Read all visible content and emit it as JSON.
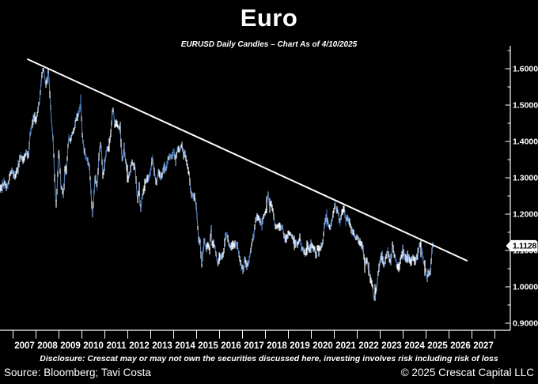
{
  "header": {
    "title": "Euro",
    "subtitle": "EURUSD Daily Candles – Chart As of 4/10/2025"
  },
  "footer": {
    "disclosure": "Disclosure: Crescat may or may not own the securities discussed here, investing involves risk including risk of loss",
    "source": "Source: Bloomberg; Tavi Costa",
    "copyright": "© 2025 Crescat Capital LLC"
  },
  "chart_data": {
    "type": "candlestick",
    "instrument": "EURUSD",
    "title": "Euro",
    "subtitle": "EURUSD Daily Candles – Chart As of 4/10/2025",
    "last_price": "1.1128",
    "grid": false,
    "legend": false,
    "x_axis": {
      "tick_years": [
        2007,
        2008,
        2009,
        2010,
        2011,
        2012,
        2013,
        2014,
        2015,
        2016,
        2017,
        2018,
        2019,
        2020,
        2021,
        2022,
        2023,
        2024,
        2025,
        2026,
        2027
      ]
    },
    "y_axis": {
      "major_ticks": [
        1.6,
        1.5,
        1.4,
        1.3,
        1.2,
        1.1,
        1.0,
        0.9
      ],
      "major_tick_labels": [
        "1.6000",
        "1.5000",
        "1.4000",
        "1.3000",
        "1.2000",
        "1.1000",
        "1.0000",
        "0.9000"
      ],
      "minor_ticks": [
        1.65,
        1.55,
        1.45,
        1.35,
        1.25,
        1.15,
        1.05,
        0.95
      ],
      "range": [
        0.88,
        1.655
      ]
    },
    "trendline": {
      "start": {
        "year": 2007.64,
        "price": 1.626
      },
      "end": {
        "year": 2026.78,
        "price": 1.072
      }
    },
    "colors": {
      "background": "#000000",
      "text": "#ffffff",
      "axis": "#ffffff",
      "trendline": "#ffffff",
      "badge_bg": "#ffffff",
      "badge_text": "#000000",
      "candles": [
        "#ffffff",
        "#d9e8fa",
        "#8fb8e8",
        "#4a7fd0",
        "#2a5cb0"
      ],
      "connector": "#6f9fd8"
    },
    "series_monthly": [
      [
        2006.42,
        1.269
      ],
      [
        2006.54,
        1.2764
      ],
      [
        2006.63,
        1.2851
      ],
      [
        2006.71,
        1.266
      ],
      [
        2006.79,
        1.2766
      ],
      [
        2006.88,
        1.3092
      ],
      [
        2006.96,
        1.3197
      ],
      [
        2007.08,
        1.2999
      ],
      [
        2007.17,
        1.3231
      ],
      [
        2007.25,
        1.3354
      ],
      [
        2007.33,
        1.3654
      ],
      [
        2007.42,
        1.3453
      ],
      [
        2007.5,
        1.3542
      ],
      [
        2007.58,
        1.3707
      ],
      [
        2007.67,
        1.3629
      ],
      [
        2007.75,
        1.4271
      ],
      [
        2007.83,
        1.4485
      ],
      [
        2007.92,
        1.4757
      ],
      [
        2008.0,
        1.4592
      ],
      [
        2008.08,
        1.487
      ],
      [
        2008.17,
        1.5187
      ],
      [
        2008.25,
        1.5805
      ],
      [
        2008.33,
        1.597
      ],
      [
        2008.42,
        1.5554
      ],
      [
        2008.5,
        1.5755
      ],
      [
        2008.54,
        1.6038
      ],
      [
        2008.58,
        1.5601
      ],
      [
        2008.67,
        1.4672
      ],
      [
        2008.75,
        1.4092
      ],
      [
        2008.83,
        1.2726
      ],
      [
        2008.88,
        1.233
      ],
      [
        2008.92,
        1.2694
      ],
      [
        2009.0,
        1.3971
      ],
      [
        2009.08,
        1.281
      ],
      [
        2009.17,
        1.2662
      ],
      [
        2009.21,
        1.2457
      ],
      [
        2009.25,
        1.3254
      ],
      [
        2009.33,
        1.3226
      ],
      [
        2009.42,
        1.4155
      ],
      [
        2009.5,
        1.4034
      ],
      [
        2009.58,
        1.4255
      ],
      [
        2009.67,
        1.4332
      ],
      [
        2009.75,
        1.4643
      ],
      [
        2009.83,
        1.4718
      ],
      [
        2009.92,
        1.5005
      ],
      [
        2009.96,
        1.512
      ],
      [
        2010.0,
        1.433
      ],
      [
        2010.08,
        1.3862
      ],
      [
        2010.17,
        1.3618
      ],
      [
        2010.25,
        1.351
      ],
      [
        2010.33,
        1.3302
      ],
      [
        2010.42,
        1.2307
      ],
      [
        2010.46,
        1.1877
      ],
      [
        2010.5,
        1.2238
      ],
      [
        2010.58,
        1.3049
      ],
      [
        2010.67,
        1.268
      ],
      [
        2010.75,
        1.3634
      ],
      [
        2010.83,
        1.3947
      ],
      [
        2010.92,
        1.2983
      ],
      [
        2011.0,
        1.3384
      ],
      [
        2011.08,
        1.3692
      ],
      [
        2011.17,
        1.3806
      ],
      [
        2011.25,
        1.4158
      ],
      [
        2011.33,
        1.4807
      ],
      [
        2011.38,
        1.494
      ],
      [
        2011.42,
        1.4398
      ],
      [
        2011.5,
        1.4502
      ],
      [
        2011.58,
        1.4398
      ],
      [
        2011.67,
        1.4388
      ],
      [
        2011.75,
        1.3387
      ],
      [
        2011.83,
        1.3856
      ],
      [
        2011.92,
        1.3446
      ],
      [
        2012.0,
        1.2961
      ],
      [
        2012.08,
        1.3081
      ],
      [
        2012.17,
        1.3444
      ],
      [
        2012.25,
        1.3343
      ],
      [
        2012.33,
        1.3239
      ],
      [
        2012.42,
        1.2358
      ],
      [
        2012.5,
        1.2667
      ],
      [
        2012.56,
        1.2042
      ],
      [
        2012.58,
        1.2304
      ],
      [
        2012.67,
        1.2579
      ],
      [
        2012.75,
        1.286
      ],
      [
        2012.83,
        1.2961
      ],
      [
        2012.92,
        1.2985
      ],
      [
        2013.0,
        1.3193
      ],
      [
        2013.08,
        1.358
      ],
      [
        2013.17,
        1.3057
      ],
      [
        2013.25,
        1.2819
      ],
      [
        2013.33,
        1.3168
      ],
      [
        2013.42,
        1.2995
      ],
      [
        2013.5,
        1.301
      ],
      [
        2013.58,
        1.3275
      ],
      [
        2013.67,
        1.3221
      ],
      [
        2013.75,
        1.3527
      ],
      [
        2013.83,
        1.3583
      ],
      [
        2013.92,
        1.3591
      ],
      [
        2014.0,
        1.3743
      ],
      [
        2014.08,
        1.3486
      ],
      [
        2014.17,
        1.3802
      ],
      [
        2014.25,
        1.3769
      ],
      [
        2014.33,
        1.3868
      ],
      [
        2014.37,
        1.3934
      ],
      [
        2014.42,
        1.3635
      ],
      [
        2014.5,
        1.3692
      ],
      [
        2014.58,
        1.339
      ],
      [
        2014.67,
        1.3133
      ],
      [
        2014.75,
        1.2632
      ],
      [
        2014.83,
        1.2524
      ],
      [
        2014.92,
        1.2453
      ],
      [
        2015.0,
        1.2098
      ],
      [
        2015.08,
        1.1289
      ],
      [
        2015.17,
        1.1197
      ],
      [
        2015.21,
        1.0458
      ],
      [
        2015.25,
        1.0731
      ],
      [
        2015.33,
        1.1224
      ],
      [
        2015.42,
        1.0986
      ],
      [
        2015.5,
        1.1147
      ],
      [
        2015.58,
        1.0984
      ],
      [
        2015.63,
        1.17
      ],
      [
        2015.67,
        1.1211
      ],
      [
        2015.75,
        1.1177
      ],
      [
        2015.83,
        1.1006
      ],
      [
        2015.92,
        1.0565
      ],
      [
        2016.0,
        1.0862
      ],
      [
        2016.08,
        1.0832
      ],
      [
        2016.17,
        1.0873
      ],
      [
        2016.25,
        1.138
      ],
      [
        2016.33,
        1.1451
      ],
      [
        2016.42,
        1.1132
      ],
      [
        2016.5,
        1.1102
      ],
      [
        2016.58,
        1.1176
      ],
      [
        2016.67,
        1.1159
      ],
      [
        2016.75,
        1.1238
      ],
      [
        2016.83,
        1.0981
      ],
      [
        2016.92,
        1.0588
      ],
      [
        2017.0,
        1.0517
      ],
      [
        2017.04,
        1.0341
      ],
      [
        2017.08,
        1.0798
      ],
      [
        2017.17,
        1.0576
      ],
      [
        2017.25,
        1.0652
      ],
      [
        2017.33,
        1.0895
      ],
      [
        2017.42,
        1.1244
      ],
      [
        2017.5,
        1.1426
      ],
      [
        2017.58,
        1.1842
      ],
      [
        2017.67,
        1.191
      ],
      [
        2017.75,
        1.1814
      ],
      [
        2017.83,
        1.1646
      ],
      [
        2017.92,
        1.1904
      ],
      [
        2018.0,
        1.2005
      ],
      [
        2018.08,
        1.2415
      ],
      [
        2018.13,
        1.2555
      ],
      [
        2018.17,
        1.2193
      ],
      [
        2018.25,
        1.2324
      ],
      [
        2018.33,
        1.2078
      ],
      [
        2018.42,
        1.1693
      ],
      [
        2018.5,
        1.1684
      ],
      [
        2018.58,
        1.1693
      ],
      [
        2018.67,
        1.1601
      ],
      [
        2018.75,
        1.1604
      ],
      [
        2018.83,
        1.1312
      ],
      [
        2018.92,
        1.1317
      ],
      [
        2019.0,
        1.1467
      ],
      [
        2019.08,
        1.1448
      ],
      [
        2019.17,
        1.1371
      ],
      [
        2019.25,
        1.1218
      ],
      [
        2019.33,
        1.1215
      ],
      [
        2019.42,
        1.1168
      ],
      [
        2019.5,
        1.1373
      ],
      [
        2019.58,
        1.1078
      ],
      [
        2019.67,
        1.0989
      ],
      [
        2019.75,
        1.0899
      ],
      [
        2019.83,
        1.1152
      ],
      [
        2019.92,
        1.1018
      ],
      [
        2020.0,
        1.1213
      ],
      [
        2020.08,
        1.1093
      ],
      [
        2020.17,
        1.1026
      ],
      [
        2020.21,
        1.0636
      ],
      [
        2020.25,
        1.1031
      ],
      [
        2020.33,
        1.0955
      ],
      [
        2020.42,
        1.1101
      ],
      [
        2020.5,
        1.1234
      ],
      [
        2020.58,
        1.1778
      ],
      [
        2020.67,
        1.1935
      ],
      [
        2020.75,
        1.1721
      ],
      [
        2020.83,
        1.1647
      ],
      [
        2020.92,
        1.1927
      ],
      [
        2021.0,
        1.2216
      ],
      [
        2021.04,
        1.2349
      ],
      [
        2021.08,
        1.2136
      ],
      [
        2021.17,
        1.2094
      ],
      [
        2021.25,
        1.173
      ],
      [
        2021.33,
        1.202
      ],
      [
        2021.42,
        1.2193
      ],
      [
        2021.5,
        1.1858
      ],
      [
        2021.58,
        1.1871
      ],
      [
        2021.67,
        1.1808
      ],
      [
        2021.75,
        1.158
      ],
      [
        2021.83,
        1.1558
      ],
      [
        2021.92,
        1.1339
      ],
      [
        2022.0,
        1.137
      ],
      [
        2022.08,
        1.1235
      ],
      [
        2022.17,
        1.1218
      ],
      [
        2022.25,
        1.1067
      ],
      [
        2022.33,
        1.0545
      ],
      [
        2022.42,
        1.0735
      ],
      [
        2022.5,
        1.0484
      ],
      [
        2022.58,
        1.022
      ],
      [
        2022.67,
        1.0054
      ],
      [
        2022.73,
        0.9536
      ],
      [
        2022.75,
        0.9802
      ],
      [
        2022.83,
        0.9881
      ],
      [
        2022.92,
        1.0405
      ],
      [
        2023.0,
        1.0705
      ],
      [
        2023.08,
        1.0863
      ],
      [
        2023.17,
        1.0577
      ],
      [
        2023.25,
        1.0839
      ],
      [
        2023.33,
        1.1019
      ],
      [
        2023.42,
        1.0688
      ],
      [
        2023.5,
        1.0909
      ],
      [
        2023.54,
        1.1276
      ],
      [
        2023.58,
        1.0994
      ],
      [
        2023.67,
        1.0843
      ],
      [
        2023.75,
        1.0573
      ],
      [
        2023.83,
        1.0575
      ],
      [
        2023.92,
        1.0888
      ],
      [
        2024.0,
        1.1039
      ],
      [
        2024.08,
        1.0818
      ],
      [
        2024.17,
        1.0805
      ],
      [
        2024.25,
        1.079
      ],
      [
        2024.33,
        1.0666
      ],
      [
        2024.42,
        1.0848
      ],
      [
        2024.5,
        1.0713
      ],
      [
        2024.58,
        1.0826
      ],
      [
        2024.67,
        1.1048
      ],
      [
        2024.73,
        1.1214
      ],
      [
        2024.75,
        1.1135
      ],
      [
        2024.83,
        1.0884
      ],
      [
        2024.92,
        1.0577
      ],
      [
        2025.0,
        1.0354
      ],
      [
        2025.04,
        1.0178
      ],
      [
        2025.08,
        1.0362
      ],
      [
        2025.17,
        1.0375
      ],
      [
        2025.2,
        1.045
      ],
      [
        2025.25,
        1.095
      ],
      [
        2025.28,
        1.1128
      ]
    ]
  }
}
